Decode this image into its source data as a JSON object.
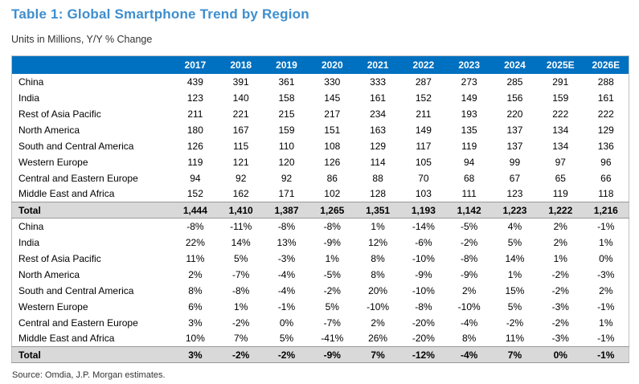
{
  "page": {
    "title": "Table 1: Global Smartphone Trend by Region",
    "subtitle": "Units in Millions, Y/Y % Change",
    "source": "Source: Omdia, J.P. Morgan estimates."
  },
  "colors": {
    "title_blue": "#3e8ece",
    "header_bg": "#0070c0",
    "header_text": "#ffffff",
    "total_row_bg": "#d9d9d9",
    "table_border": "#bfbfbf"
  },
  "table": {
    "columns": [
      "2017",
      "2018",
      "2019",
      "2020",
      "2021",
      "2022",
      "2023",
      "2024",
      "2025E",
      "2026E"
    ],
    "units_rows": [
      {
        "label": "China",
        "values": [
          "439",
          "391",
          "361",
          "330",
          "333",
          "287",
          "273",
          "285",
          "291",
          "288"
        ]
      },
      {
        "label": "India",
        "values": [
          "123",
          "140",
          "158",
          "145",
          "161",
          "152",
          "149",
          "156",
          "159",
          "161"
        ]
      },
      {
        "label": "Rest of Asia Pacific",
        "values": [
          "211",
          "221",
          "215",
          "217",
          "234",
          "211",
          "193",
          "220",
          "222",
          "222"
        ]
      },
      {
        "label": "North America",
        "values": [
          "180",
          "167",
          "159",
          "151",
          "163",
          "149",
          "135",
          "137",
          "134",
          "129"
        ]
      },
      {
        "label": "South and Central America",
        "values": [
          "126",
          "115",
          "110",
          "108",
          "129",
          "117",
          "119",
          "137",
          "134",
          "136"
        ]
      },
      {
        "label": "Western Europe",
        "values": [
          "119",
          "121",
          "120",
          "126",
          "114",
          "105",
          "94",
          "99",
          "97",
          "96"
        ]
      },
      {
        "label": "Central and Eastern Europe",
        "values": [
          "94",
          "92",
          "92",
          "86",
          "88",
          "70",
          "68",
          "67",
          "65",
          "66"
        ]
      },
      {
        "label": "Middle East and Africa",
        "values": [
          "152",
          "162",
          "171",
          "102",
          "128",
          "103",
          "111",
          "123",
          "119",
          "118"
        ]
      }
    ],
    "units_total": {
      "label": "Total",
      "values": [
        "1,444",
        "1,410",
        "1,387",
        "1,265",
        "1,351",
        "1,193",
        "1,142",
        "1,223",
        "1,222",
        "1,216"
      ]
    },
    "pct_rows": [
      {
        "label": "China",
        "values": [
          "-8%",
          "-11%",
          "-8%",
          "-8%",
          "1%",
          "-14%",
          "-5%",
          "4%",
          "2%",
          "-1%"
        ]
      },
      {
        "label": "India",
        "values": [
          "22%",
          "14%",
          "13%",
          "-9%",
          "12%",
          "-6%",
          "-2%",
          "5%",
          "2%",
          "1%"
        ]
      },
      {
        "label": "Rest of Asia Pacific",
        "values": [
          "11%",
          "5%",
          "-3%",
          "1%",
          "8%",
          "-10%",
          "-8%",
          "14%",
          "1%",
          "0%"
        ]
      },
      {
        "label": "North America",
        "values": [
          "2%",
          "-7%",
          "-4%",
          "-5%",
          "8%",
          "-9%",
          "-9%",
          "1%",
          "-2%",
          "-3%"
        ]
      },
      {
        "label": "South and Central America",
        "values": [
          "8%",
          "-8%",
          "-4%",
          "-2%",
          "20%",
          "-10%",
          "2%",
          "15%",
          "-2%",
          "2%"
        ]
      },
      {
        "label": "Western Europe",
        "values": [
          "6%",
          "1%",
          "-1%",
          "5%",
          "-10%",
          "-8%",
          "-10%",
          "5%",
          "-3%",
          "-1%"
        ]
      },
      {
        "label": "Central and Eastern Europe",
        "values": [
          "3%",
          "-2%",
          "0%",
          "-7%",
          "2%",
          "-20%",
          "-4%",
          "-2%",
          "-2%",
          "1%"
        ]
      },
      {
        "label": "Middle East and Africa",
        "values": [
          "10%",
          "7%",
          "5%",
          "-41%",
          "26%",
          "-20%",
          "8%",
          "11%",
          "-3%",
          "-1%"
        ]
      }
    ],
    "pct_total": {
      "label": "Total",
      "values": [
        "3%",
        "-2%",
        "-2%",
        "-9%",
        "7%",
        "-12%",
        "-4%",
        "7%",
        "0%",
        "-1%"
      ]
    }
  }
}
